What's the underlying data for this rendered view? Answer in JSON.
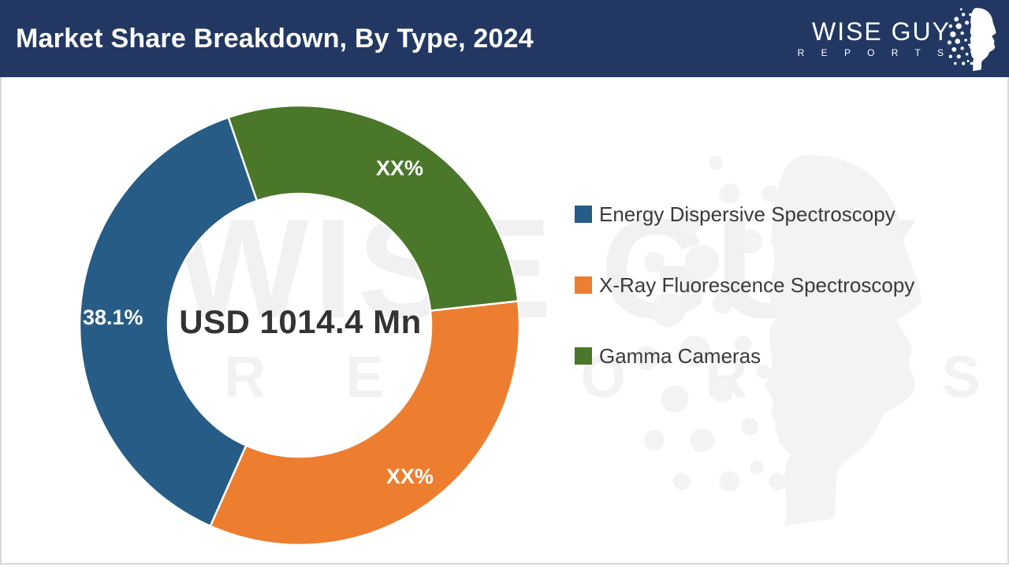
{
  "header": {
    "title": "Market Share Breakdown, By Type, 2024",
    "logo": {
      "brand": "WISE GUY",
      "sub": "R E P O R T S"
    }
  },
  "watermark": {
    "brand": "WISE GUY",
    "sub": "R E P O R T S"
  },
  "chart_data": {
    "type": "donut",
    "title": "Market Share Breakdown, By Type, 2024",
    "center_label": "USD 1014.4 Mn",
    "legend_position": "right",
    "start_angle_deg": -18.9,
    "segments": [
      {
        "name": "Gamma Cameras",
        "percent": 28.5,
        "display_label": "XX%",
        "color": "#4A7729"
      },
      {
        "name": "X-Ray Fluorescence Spectroscopy",
        "percent": 33.4,
        "display_label": "XX%",
        "color": "#ED7E30"
      },
      {
        "name": "Energy Dispersive Spectroscopy",
        "percent": 38.1,
        "display_label": "38.1%",
        "color": "#265C85"
      }
    ]
  },
  "legend": {
    "items": [
      {
        "label": "Energy Dispersive Spectroscopy",
        "color": "#265C85"
      },
      {
        "label": "X-Ray Fluorescence Spectroscopy",
        "color": "#ED7E30"
      },
      {
        "label": "Gamma Cameras",
        "color": "#4A7729"
      }
    ]
  },
  "colors": {
    "header_bg": "#223863",
    "border": "#D9D9D9",
    "center_text": "#333333",
    "legend_text": "#3A3A3A",
    "watermark": "#F1F1F1"
  }
}
